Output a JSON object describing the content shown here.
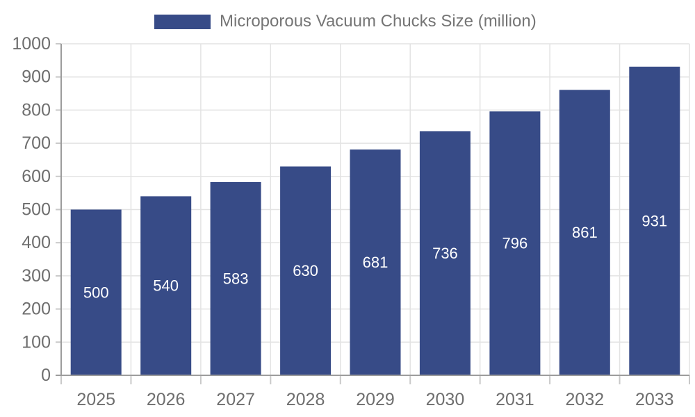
{
  "legend": {
    "label": "Microporous Vacuum Chucks Size (million)"
  },
  "chart_data": {
    "type": "bar",
    "title": "",
    "series_name": "Microporous Vacuum Chucks Size (million)",
    "categories": [
      "2025",
      "2026",
      "2027",
      "2028",
      "2029",
      "2030",
      "2031",
      "2032",
      "2033"
    ],
    "values": [
      500,
      540,
      583,
      630,
      681,
      736,
      796,
      861,
      931
    ],
    "xlabel": "",
    "ylabel": "",
    "ylim": [
      0,
      1000
    ],
    "yticks": [
      0,
      100,
      200,
      300,
      400,
      500,
      600,
      700,
      800,
      900,
      1000
    ],
    "grid": true,
    "legend_position": "top",
    "value_labels": "inside-center",
    "colors": {
      "bar": "#374B87",
      "value_label": "#ffffff",
      "axis_line": "#9c9c9c",
      "tick_line": "#c9c9c9",
      "grid_line": "#e3e3e3",
      "axis_text": "#6e6e6e",
      "legend_text": "#757575",
      "background": "#ffffff"
    }
  }
}
